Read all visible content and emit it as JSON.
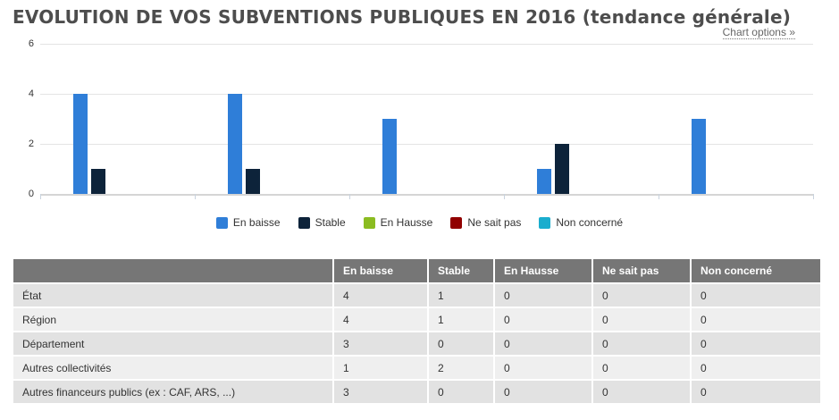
{
  "header": {
    "title": "EVOLUTION DE VOS SUBVENTIONS PUBLIQUES EN 2016 (tendance générale)",
    "chart_options_label": "Chart options »"
  },
  "chart_data": {
    "type": "bar",
    "title": "EVOLUTION DE VOS SUBVENTIONS PUBLIQUES EN 2016 (tendance générale)",
    "categories": [
      "État",
      "Région",
      "Département",
      "Autres collectivités",
      "Autres financeurs publics (ex : CAF, ARS, ...)"
    ],
    "series": [
      {
        "name": "En baisse",
        "color": "#2f7ed8",
        "values": [
          4,
          4,
          3,
          1,
          3
        ]
      },
      {
        "name": "Stable",
        "color": "#0d233a",
        "values": [
          1,
          1,
          0,
          2,
          0
        ]
      },
      {
        "name": "En Hausse",
        "color": "#8bbc21",
        "values": [
          0,
          0,
          0,
          0,
          0
        ]
      },
      {
        "name": "Ne sait pas",
        "color": "#910000",
        "values": [
          0,
          0,
          0,
          0,
          0
        ]
      },
      {
        "name": "Non concerné",
        "color": "#1aadce",
        "values": [
          0,
          0,
          0,
          0,
          0
        ]
      }
    ],
    "xlabel": "",
    "ylabel": "",
    "ylim": [
      0,
      6
    ],
    "yticks": [
      0,
      2,
      4,
      6
    ],
    "grid": true,
    "legend_position": "bottom",
    "x_axis_category_labels_hidden": true
  },
  "table": {
    "columns": [
      "",
      "En baisse",
      "Stable",
      "En Hausse",
      "Ne sait pas",
      "Non concerné"
    ],
    "rows": [
      {
        "label": "État",
        "values": [
          "4",
          "1",
          "0",
          "0",
          "0"
        ]
      },
      {
        "label": "Région",
        "values": [
          "4",
          "1",
          "0",
          "0",
          "0"
        ]
      },
      {
        "label": "Département",
        "values": [
          "3",
          "0",
          "0",
          "0",
          "0"
        ]
      },
      {
        "label": "Autres collectivités",
        "values": [
          "1",
          "2",
          "0",
          "0",
          "0"
        ]
      },
      {
        "label": "Autres financeurs publics (ex : CAF, ARS, ...)",
        "values": [
          "3",
          "0",
          "0",
          "0",
          "0"
        ]
      }
    ]
  },
  "colors": {
    "title_text": "#4d4d4d",
    "link_text": "#666666",
    "grid_line": "#e4e4e4",
    "axis_line": "#d5d5d5",
    "tick_mark": "#c9d3de",
    "table_header_bg": "#767676",
    "row_dark": "#e2e2e2",
    "row_light": "#efefef"
  }
}
